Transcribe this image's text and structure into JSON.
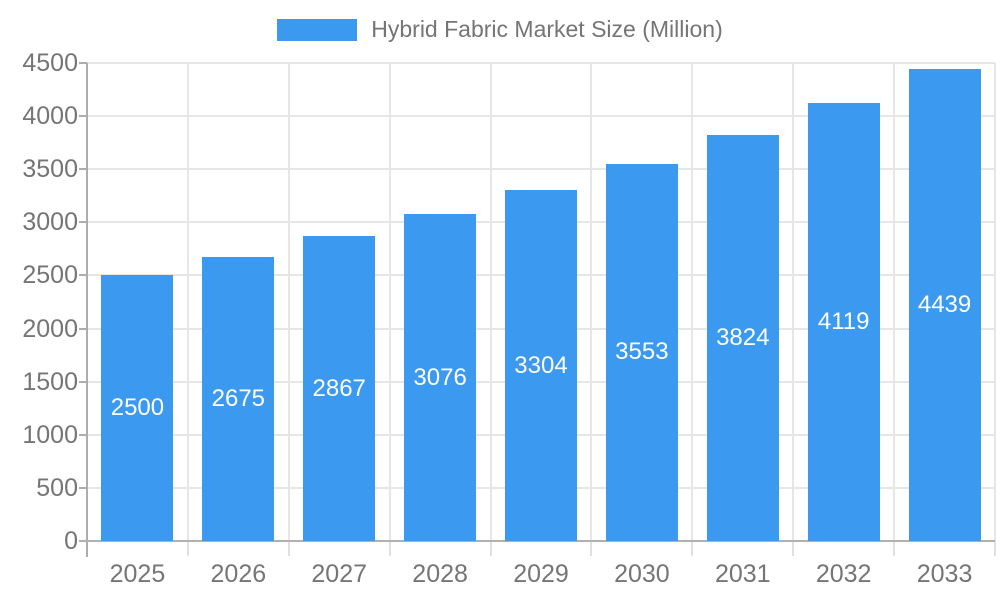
{
  "legend": {
    "label": "Hybrid Fabric Market Size (Million)",
    "swatch_color": "#3B99F0"
  },
  "chart_data": {
    "type": "bar",
    "title": "Hybrid Fabric Market Size (Million)",
    "categories": [
      "2025",
      "2026",
      "2027",
      "2028",
      "2029",
      "2030",
      "2031",
      "2032",
      "2033"
    ],
    "values": [
      2500,
      2675,
      2867,
      3076,
      3304,
      3553,
      3824,
      4119,
      4439
    ],
    "xlabel": "",
    "ylabel": "",
    "ylim": [
      0,
      4500
    ],
    "ytick_step": 500,
    "ytick_labels": [
      "0",
      "500",
      "1000",
      "1500",
      "2000",
      "2500",
      "3000",
      "3500",
      "4000",
      "4500"
    ],
    "grid": true,
    "legend_position": "top-center",
    "value_label_position": "inside-center",
    "colors": {
      "bar": "#3B99F0",
      "gridline": "#e6e6e6",
      "axis_line": "#adadad",
      "baseline": "#b0b0b0",
      "minor_tick": "#e0e0e0",
      "tick_text": "#757575",
      "value_label_text": "#ffffff"
    }
  }
}
